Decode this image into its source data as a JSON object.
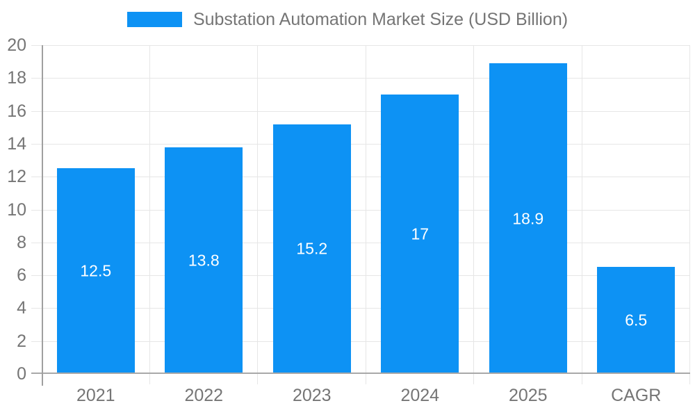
{
  "legend": {
    "label": "Substation Automation Market Size (USD Billion)"
  },
  "colors": {
    "bar": "#0d92f4",
    "grid": "#e6e6e6",
    "axis": "#a0a0a0",
    "baseline": "#a8a8a8",
    "label": "#757575",
    "value_label": "#ffffff",
    "background": "#ffffff"
  },
  "chart_data": {
    "type": "bar",
    "title": "Substation Automation Market Size (USD Billion)",
    "categories": [
      "2021",
      "2022",
      "2023",
      "2024",
      "2025",
      "CAGR"
    ],
    "values": [
      12.5,
      13.8,
      15.2,
      17,
      18.9,
      6.5
    ],
    "value_labels": [
      "12.5",
      "13.8",
      "15.2",
      "17",
      "18.9",
      "6.5"
    ],
    "xlabel": "",
    "ylabel": "",
    "ylim": [
      0,
      20
    ],
    "ytick_step": 2,
    "yticks": [
      0,
      2,
      4,
      6,
      8,
      10,
      12,
      14,
      16,
      18,
      20
    ],
    "grid": true,
    "legend_position": "top",
    "value_label_position": "center-inside"
  }
}
